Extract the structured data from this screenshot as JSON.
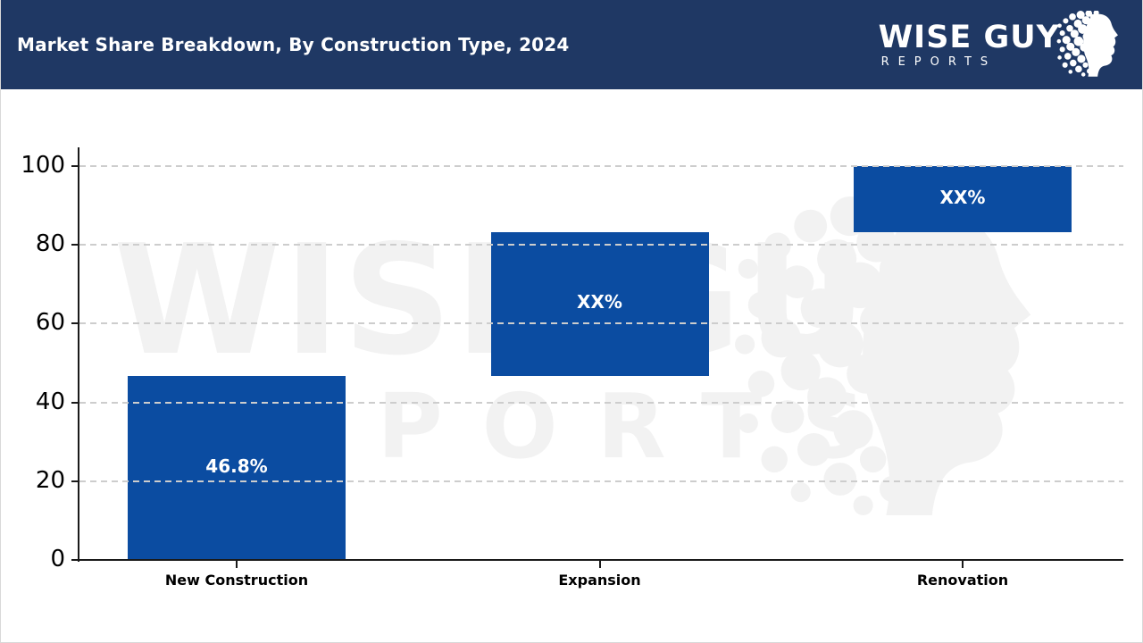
{
  "header": {
    "title": "Market Share Breakdown, By Construction Type, 2024",
    "bg_color": "#1f3864",
    "logo": {
      "line1": "WISE GUY",
      "line2": "REPORTS"
    }
  },
  "watermark": {
    "line1": "WISE GUY",
    "line2": "REPORTS"
  },
  "chart_data": {
    "type": "bar",
    "subtype": "stepped-waterfall",
    "title": "Market Share Breakdown, By Construction Type, 2024",
    "categories": [
      "New Construction",
      "Expansion",
      "Renovation"
    ],
    "segments": [
      {
        "category": "New Construction",
        "start": 0,
        "end": 46.8,
        "label": "46.8%"
      },
      {
        "category": "Expansion",
        "start": 46.8,
        "end": 83.2,
        "label": "XX%"
      },
      {
        "category": "Renovation",
        "start": 83.2,
        "end": 100,
        "label": "XX%"
      }
    ],
    "y_ticks": [
      0,
      20,
      40,
      60,
      80,
      100
    ],
    "ylim": [
      0,
      104.7
    ],
    "xlabel": "",
    "ylabel": "",
    "grid": "horizontal-dashed",
    "legend": "none",
    "bar_color": "#0b4ca1",
    "bar_label_color": "#ffffff",
    "axis_color": "#1a1a1a",
    "grid_color": "#cdcdcd",
    "tick_label_color": "#000000"
  }
}
